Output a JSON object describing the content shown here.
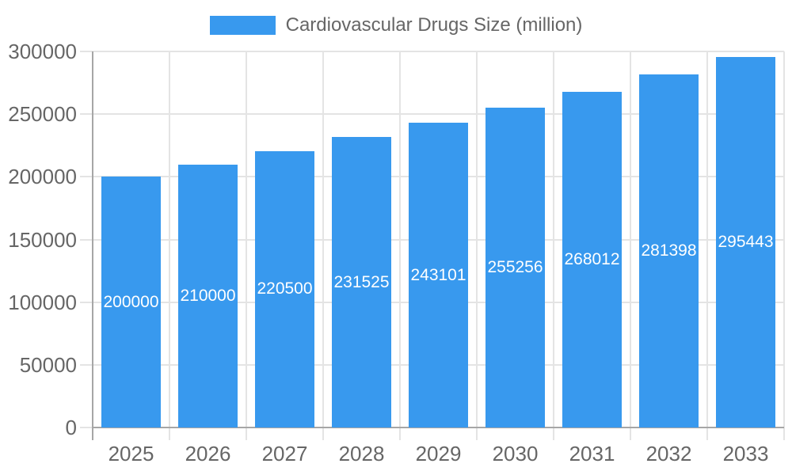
{
  "legend": {
    "label": "Cardiovascular Drugs Size (million)"
  },
  "chart_data": {
    "type": "bar",
    "title": "Cardiovascular Drugs Size (million)",
    "legend_position": "top",
    "grid": true,
    "categories": [
      "2025",
      "2026",
      "2027",
      "2028",
      "2029",
      "2030",
      "2031",
      "2032",
      "2033"
    ],
    "values": [
      200000,
      210000,
      220500,
      231525,
      243101,
      255256,
      268012,
      281398,
      295443
    ],
    "bar_labels": [
      "200000",
      "210000",
      "220500",
      "231525",
      "243101",
      "255256",
      "268012",
      "281398",
      "295443"
    ],
    "xlabel": "",
    "ylabel": "",
    "ylim": [
      0,
      300000
    ],
    "yticks": [
      0,
      50000,
      100000,
      150000,
      200000,
      250000,
      300000
    ],
    "ytick_labels": [
      "0",
      "50000",
      "100000",
      "150000",
      "200000",
      "250000",
      "300000"
    ],
    "colors": {
      "bar": "#3899EE",
      "bar_label_text": "#FFFFFF",
      "axis_text": "#666666",
      "grid_line": "#E4E4E4",
      "axis_line": "#A6A6A6",
      "background": "#FFFFFF"
    }
  }
}
